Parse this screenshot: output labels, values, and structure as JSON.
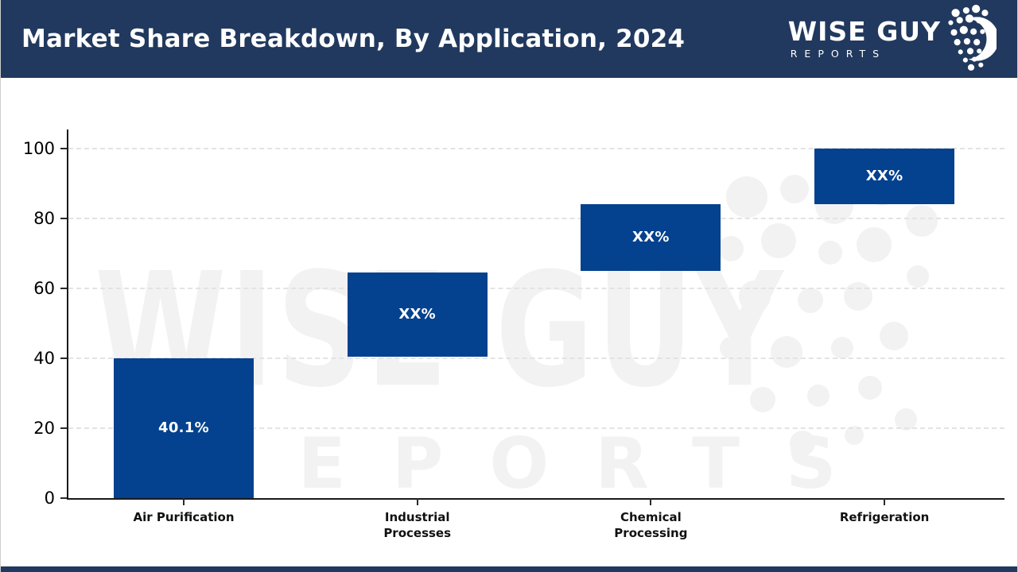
{
  "header": {
    "title": "Market Share Breakdown, By Application, 2024",
    "bg_color": "#21395e",
    "logo": {
      "line1": "WISE GUY",
      "line2": "REPORTS",
      "head_icon": "dotted-face-profile"
    }
  },
  "watermark": {
    "line1": "WISE GUY",
    "line2": "REPORTS"
  },
  "footer": {
    "bg_color": "#21395e"
  },
  "chart_data": {
    "type": "bar",
    "subtype": "waterfall",
    "title": "Market Share Breakdown, By Application, 2024",
    "categories": [
      "Air Purification",
      "Industrial\nProcesses",
      "Chemical\nProcessing",
      "Refrigeration"
    ],
    "segments": [
      {
        "category": "Air Purification",
        "start": 0,
        "end": 40.1,
        "label": "40.1%"
      },
      {
        "category": "Industrial Processes",
        "start": 40.4,
        "end": 64.6,
        "label": "XX%"
      },
      {
        "category": "Chemical Processing",
        "start": 64.9,
        "end": 84.2,
        "label": "XX%"
      },
      {
        "category": "Refrigeration",
        "start": 84.2,
        "end": 100,
        "label": "XX%"
      }
    ],
    "xlabel": "",
    "ylabel": "",
    "yticks": [
      0,
      20,
      40,
      60,
      80,
      100
    ],
    "ylim": [
      0,
      105
    ],
    "grid": "horizontal-dashed",
    "legend": "none",
    "bar_color": "#04418e",
    "bar_label_color": "#ffffff",
    "axis_color": "#1a1a1a"
  }
}
